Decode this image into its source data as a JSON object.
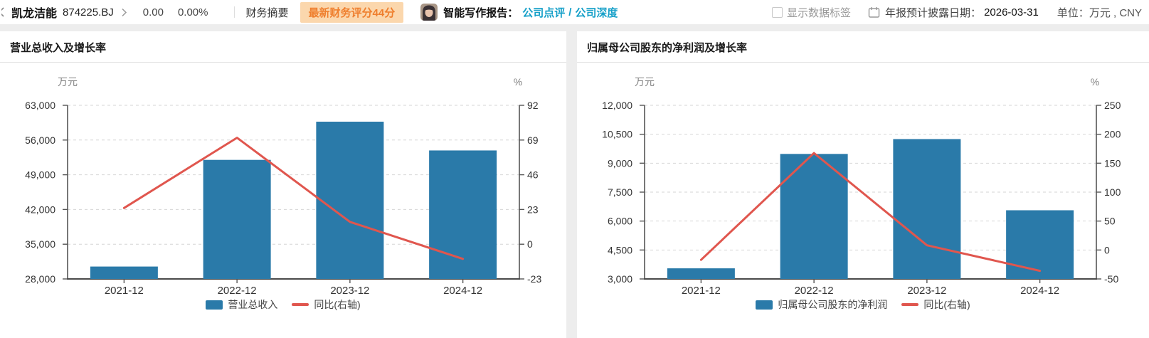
{
  "header": {
    "stock_name": "凯龙洁能",
    "stock_code": "874225.BJ",
    "price": "0.00",
    "change_pct": "0.00%",
    "summary_tab": "财务摘要",
    "score_badge": "最新财务评分44分",
    "report_label": "智能写作报告：",
    "report_link_1": "公司点评",
    "report_link_sep": "/",
    "report_link_2": "公司深度",
    "show_labels_checkbox": "显示数据标签",
    "disclosure_label": "年报预计披露日期：",
    "disclosure_date": "2026-03-31",
    "unit_label": "单位：",
    "unit_value": "万元 , CNY"
  },
  "colors": {
    "bar": "#2a7aa9",
    "line": "#e0564e",
    "link": "#149fc8",
    "badge_bg": "#fbd7ad",
    "badge_text": "#ef7f2e",
    "grid": "#d6d6d6",
    "axis": "#555555",
    "tick_text": "#333333",
    "unit_text": "#808080"
  },
  "chart_data": [
    {
      "type": "bar",
      "title": "营业总收入及增长率",
      "categories": [
        "2021-12",
        "2022-12",
        "2023-12",
        "2024-12"
      ],
      "left_axis": {
        "unit": "万元",
        "min": 28000,
        "max": 63000,
        "ticks": [
          [
            63000,
            "63,000"
          ],
          [
            56000,
            "56,000"
          ],
          [
            49000,
            "49,000"
          ],
          [
            42000,
            "42,000"
          ],
          [
            35000,
            "35,000"
          ],
          [
            28000,
            "28,000"
          ]
        ]
      },
      "right_axis": {
        "unit": "%",
        "min": -23,
        "max": 92,
        "ticks": [
          [
            92,
            "92"
          ],
          [
            69,
            "69"
          ],
          [
            46,
            "46"
          ],
          [
            23,
            "23"
          ],
          [
            0,
            "0"
          ],
          [
            -23,
            "-23"
          ]
        ]
      },
      "series": [
        {
          "name": "营业总收入",
          "type": "bar",
          "axis": "left",
          "color": "#2a7aa9",
          "values": [
            30500,
            52000,
            59700,
            53900
          ]
        },
        {
          "name": "同比(右轴)",
          "type": "line",
          "axis": "right",
          "color": "#e0564e",
          "values": [
            24,
            70.5,
            14.8,
            -9.7
          ]
        }
      ]
    },
    {
      "type": "bar",
      "title": "归属母公司股东的净利润及增长率",
      "categories": [
        "2021-12",
        "2022-12",
        "2023-12",
        "2024-12"
      ],
      "left_axis": {
        "unit": "万元",
        "min": 3000,
        "max": 12000,
        "ticks": [
          [
            12000,
            "12,000"
          ],
          [
            10500,
            "10,500"
          ],
          [
            9000,
            "9,000"
          ],
          [
            7500,
            "7,500"
          ],
          [
            6000,
            "6,000"
          ],
          [
            4500,
            "4,500"
          ],
          [
            3000,
            "3,000"
          ]
        ]
      },
      "right_axis": {
        "unit": "%",
        "min": -50,
        "max": 250,
        "ticks": [
          [
            250,
            "250"
          ],
          [
            200,
            "200"
          ],
          [
            150,
            "150"
          ],
          [
            100,
            "100"
          ],
          [
            50,
            "50"
          ],
          [
            0,
            "0"
          ],
          [
            -50,
            "-50"
          ]
        ]
      },
      "series": [
        {
          "name": "归属母公司股东的净利润",
          "type": "bar",
          "axis": "left",
          "color": "#2a7aa9",
          "values": [
            3550,
            9480,
            10250,
            6560
          ]
        },
        {
          "name": "同比(右轴)",
          "type": "line",
          "axis": "right",
          "color": "#e0564e",
          "values": [
            -17,
            167.5,
            8.1,
            -36
          ]
        }
      ]
    }
  ]
}
